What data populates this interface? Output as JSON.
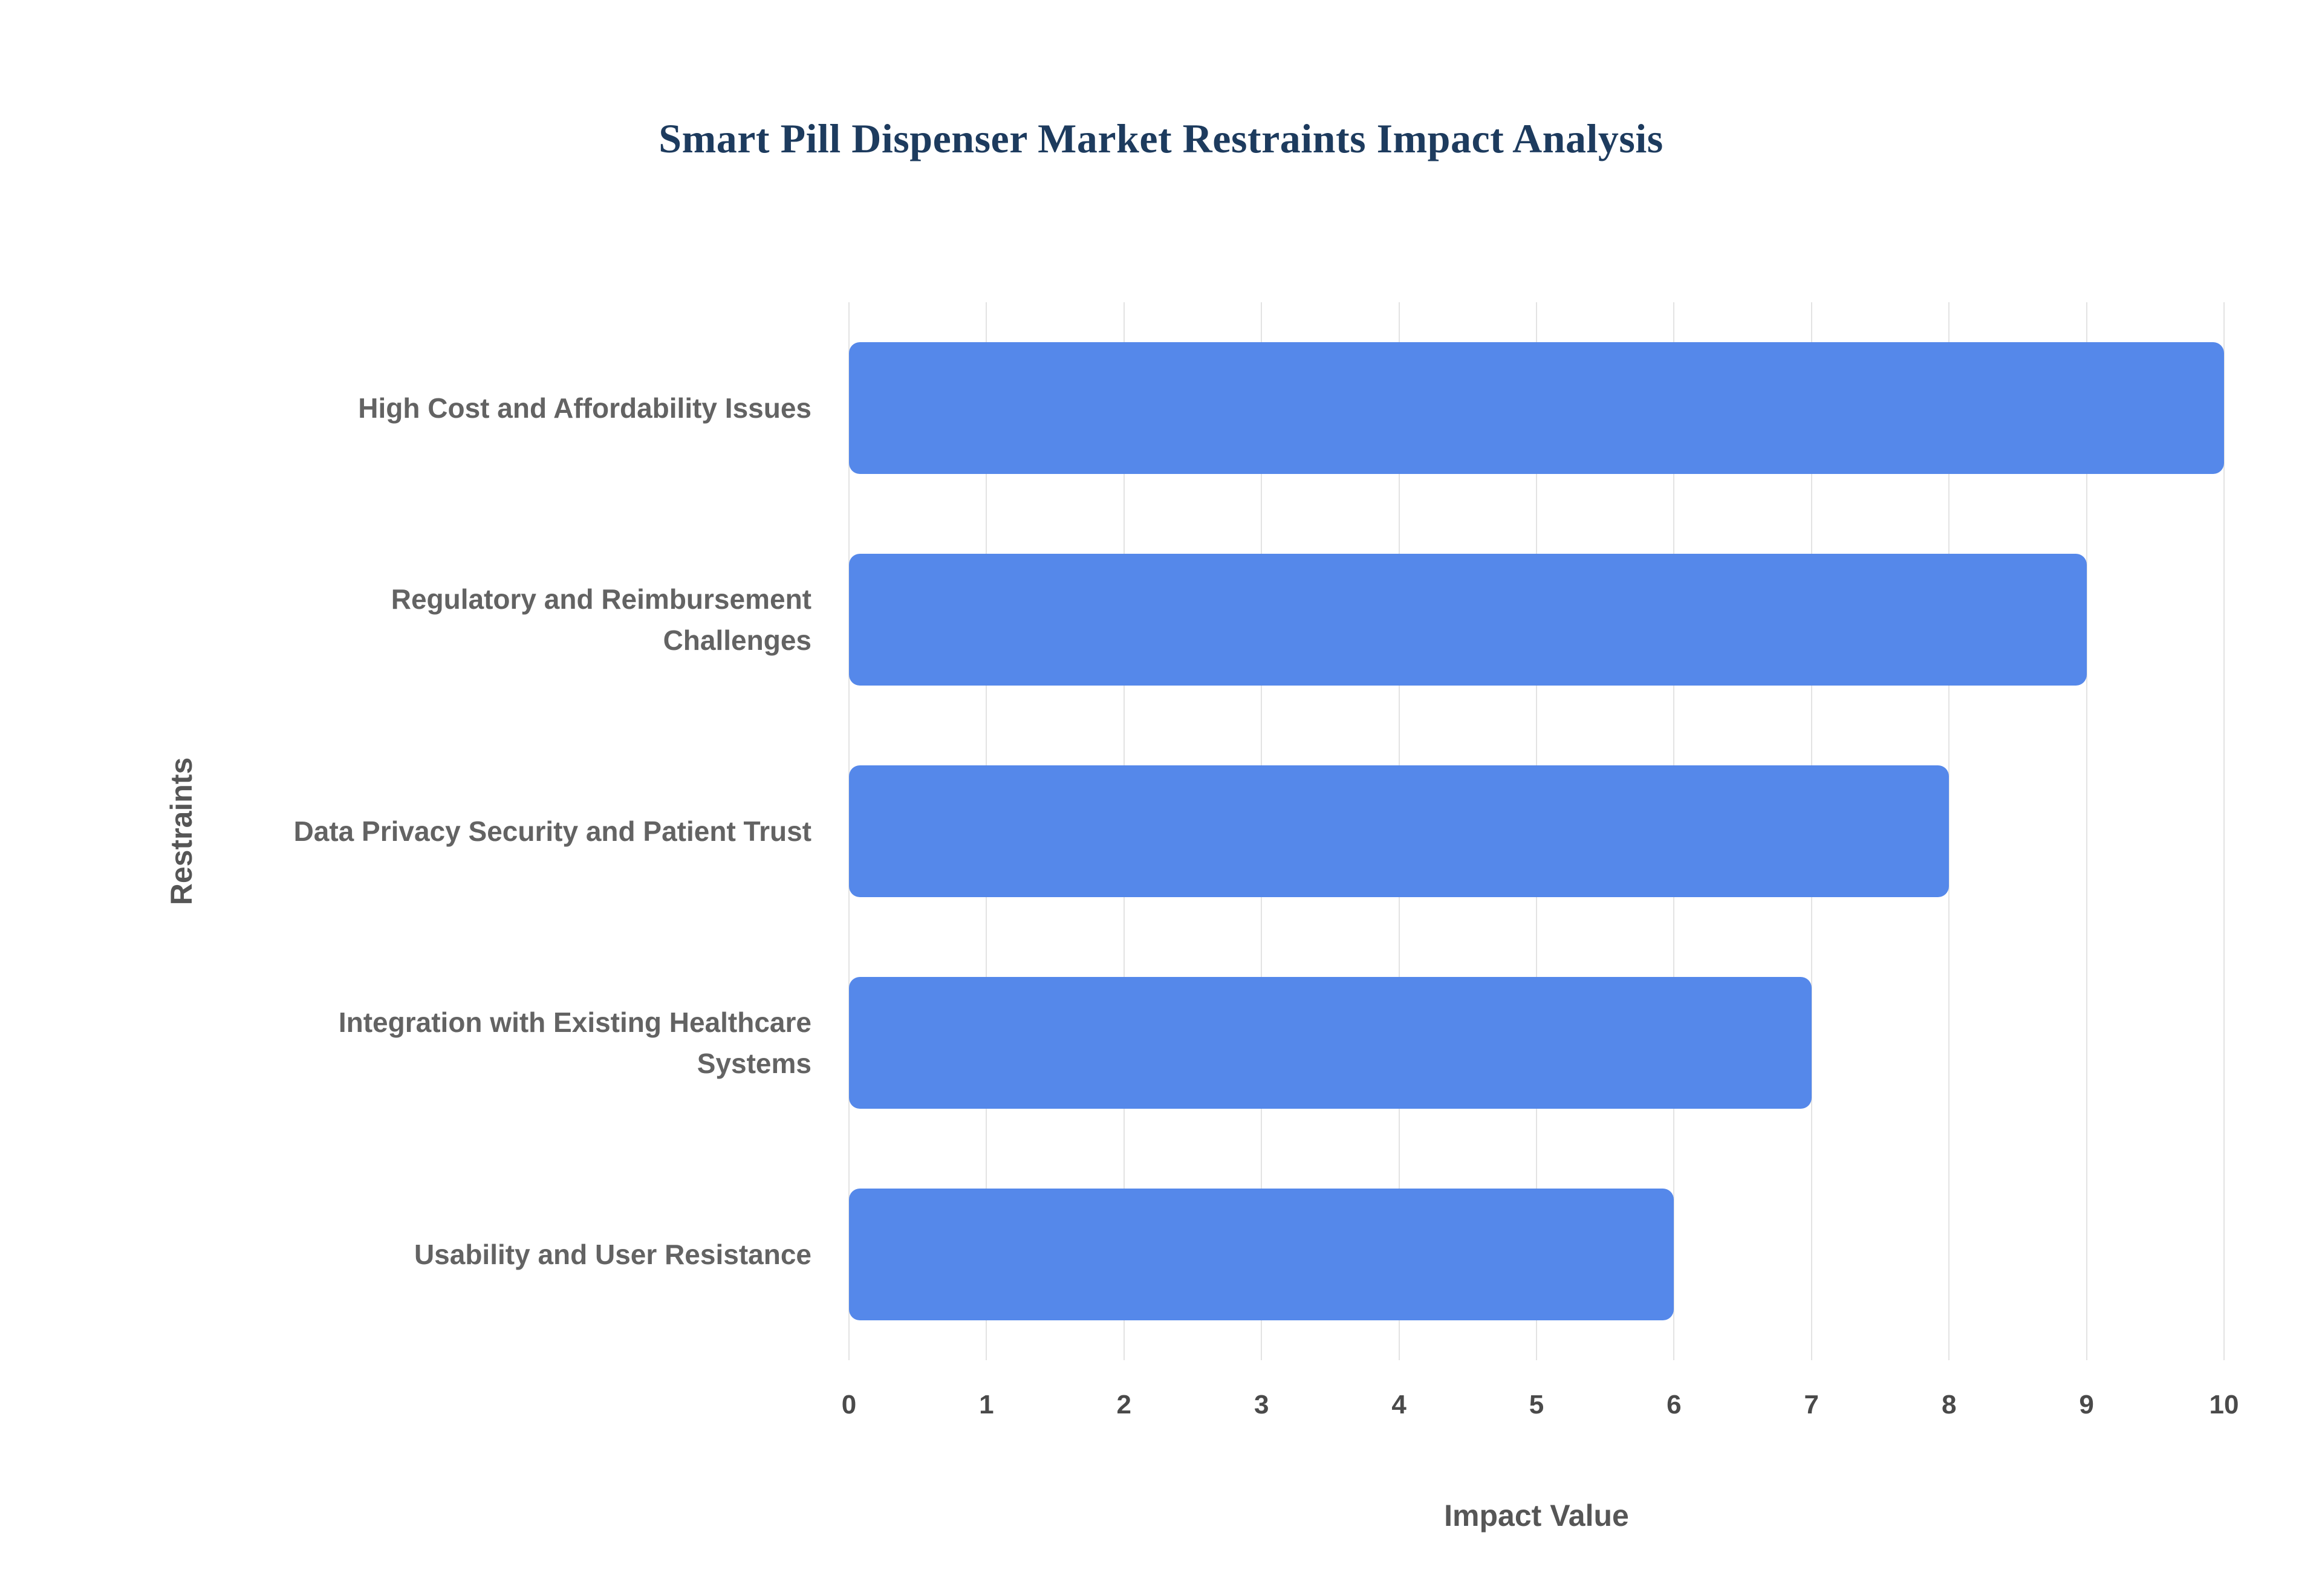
{
  "chart_data": {
    "type": "bar",
    "orientation": "horizontal",
    "title": "Smart Pill Dispenser Market Restraints Impact Analysis",
    "xlabel": "Impact Value",
    "ylabel": "Restraints",
    "categories": [
      "High Cost and Affordability Issues",
      "Regulatory and Reimbursement Challenges",
      "Data Privacy Security and Patient Trust",
      "Integration with Existing Healthcare Systems",
      "Usability and User Resistance"
    ],
    "values": [
      10,
      9,
      8,
      7,
      6
    ],
    "xlim": [
      0,
      10
    ],
    "xticks": [
      0,
      1,
      2,
      3,
      4,
      5,
      6,
      7,
      8,
      9,
      10
    ],
    "grid": "vertical",
    "legend": "none",
    "colors": {
      "bar": "#5588ea",
      "gridline": "#e3e3e3",
      "title": "#1d3b5e",
      "category_label": "#636363",
      "tick_label": "#4a4a4a",
      "axis_title": "#565656"
    }
  }
}
